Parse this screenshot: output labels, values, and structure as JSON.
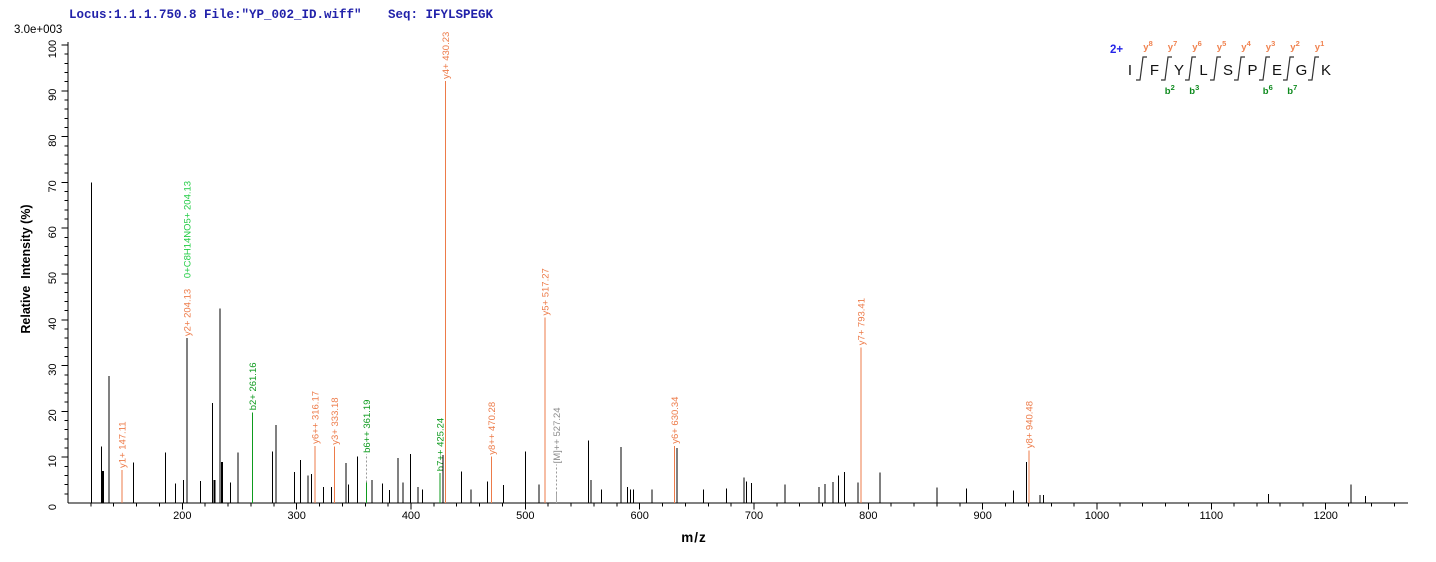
{
  "header": {
    "locus_file": "Locus:1.1.1.750.8 File:\"YP_002_ID.wiff\"",
    "seq_label": "Seq: ",
    "seq_value": "IFYLSPEGK"
  },
  "colors": {
    "header_blue": "#2222AA",
    "charge_blue": "#2525E8",
    "y_ion_orange": "#ED7B49",
    "b_ion_green": "#0E9B1E",
    "formula_green": "#22CC44",
    "precursor_gray": "#8C8C8C",
    "precursor_line_gray": "#A8A8A8",
    "peak_black": "#000000"
  },
  "peptide_diagram": {
    "charge": "2+",
    "residues": [
      "I",
      "F",
      "Y",
      "L",
      "S",
      "P",
      "E",
      "G",
      "K"
    ],
    "boundaries": [
      {
        "y_base": "y",
        "y_sup": "8",
        "b_base": "",
        "b_sup": ""
      },
      {
        "y_base": "y",
        "y_sup": "7",
        "b_base": "b",
        "b_sup": "2"
      },
      {
        "y_base": "y",
        "y_sup": "6",
        "b_base": "b",
        "b_sup": "3"
      },
      {
        "y_base": "y",
        "y_sup": "5",
        "b_base": "",
        "b_sup": ""
      },
      {
        "y_base": "y",
        "y_sup": "4",
        "b_base": "",
        "b_sup": ""
      },
      {
        "y_base": "y",
        "y_sup": "3",
        "b_base": "b",
        "b_sup": "6"
      },
      {
        "y_base": "y",
        "y_sup": "2",
        "b_base": "b",
        "b_sup": "7"
      },
      {
        "y_base": "y",
        "y_sup": "1",
        "b_base": "",
        "b_sup": ""
      }
    ]
  },
  "chart_data": {
    "type": "bar",
    "subtype": "ms2-fragment-spectrum",
    "xlabel": "m/z",
    "ylabel": "Relative  Intensity (%)",
    "intensity_scale": "3.0e+003",
    "xlim": [
      100,
      1272
    ],
    "ylim": [
      0,
      100
    ],
    "x_major_ticks": [
      200,
      300,
      400,
      500,
      600,
      700,
      800,
      900,
      1000,
      1100,
      1200
    ],
    "x_minor_step": 20,
    "y_major_step": 10,
    "y_minor_step": 2,
    "grid": false,
    "legend": "none",
    "peaks": [
      {
        "mz": 120.5,
        "i": 70
      },
      {
        "mz": 129.3,
        "i": 12.3
      },
      {
        "mz": 130.5,
        "i": 7,
        "w": 2
      },
      {
        "mz": 136.0,
        "i": 27.7
      },
      {
        "mz": 147.11,
        "i": 7.2,
        "t": "y",
        "label": "y1+ 147.11"
      },
      {
        "mz": 157.3,
        "i": 8.8
      },
      {
        "mz": 185.4,
        "i": 11
      },
      {
        "mz": 194,
        "i": 4.3
      },
      {
        "mz": 201,
        "i": 5
      },
      {
        "mz": 204.13,
        "i": 36,
        "t": "k",
        "label": "y2+ 204.13",
        "label2": "0+C8H14NO5+ 204.13"
      },
      {
        "mz": 216,
        "i": 4.8
      },
      {
        "mz": 226.5,
        "i": 21.8
      },
      {
        "mz": 228,
        "i": 5,
        "w": 2
      },
      {
        "mz": 233,
        "i": 42.5
      },
      {
        "mz": 234.5,
        "i": 9,
        "w": 2
      },
      {
        "mz": 242,
        "i": 4.5
      },
      {
        "mz": 248.5,
        "i": 11
      },
      {
        "mz": 261.16,
        "i": 19.8,
        "t": "b",
        "label": "b2+ 261.16"
      },
      {
        "mz": 279,
        "i": 11.2
      },
      {
        "mz": 282,
        "i": 17
      },
      {
        "mz": 298,
        "i": 6.8
      },
      {
        "mz": 303.5,
        "i": 9.4
      },
      {
        "mz": 310,
        "i": 6
      },
      {
        "mz": 313,
        "i": 6.3
      },
      {
        "mz": 316.17,
        "i": 12.5,
        "t": "y",
        "label": "y6++ 316.17"
      },
      {
        "mz": 323.5,
        "i": 3.5
      },
      {
        "mz": 330.5,
        "i": 3.5
      },
      {
        "mz": 333.18,
        "i": 12.3,
        "t": "y",
        "label": "y3+ 333.18"
      },
      {
        "mz": 343,
        "i": 8.7
      },
      {
        "mz": 345.5,
        "i": 4
      },
      {
        "mz": 353,
        "i": 10.1
      },
      {
        "mz": 361.19,
        "i": 4.5,
        "t": "b",
        "label": "b6++ 361.19",
        "label_at": 10.5
      },
      {
        "mz": 366,
        "i": 5
      },
      {
        "mz": 375,
        "i": 4.3
      },
      {
        "mz": 381,
        "i": 2.8
      },
      {
        "mz": 388.5,
        "i": 9.8
      },
      {
        "mz": 393,
        "i": 4.5
      },
      {
        "mz": 399.5,
        "i": 10.7
      },
      {
        "mz": 406,
        "i": 3.5
      },
      {
        "mz": 410,
        "i": 3
      },
      {
        "mz": 425.24,
        "i": 6.5,
        "t": "b",
        "label": "b7++ 425.24"
      },
      {
        "mz": 428,
        "i": 10.5
      },
      {
        "mz": 430.23,
        "i": 100,
        "t": "y",
        "label": "y4+ 430.23"
      },
      {
        "mz": 444,
        "i": 6.9
      },
      {
        "mz": 452.5,
        "i": 3
      },
      {
        "mz": 467,
        "i": 4.7
      },
      {
        "mz": 470.28,
        "i": 10.1,
        "t": "y",
        "label": "y8++ 470.28"
      },
      {
        "mz": 481,
        "i": 3.9
      },
      {
        "mz": 500.3,
        "i": 11.2
      },
      {
        "mz": 512,
        "i": 4
      },
      {
        "mz": 517.27,
        "i": 40.5,
        "t": "y",
        "label": "y5+ 517.27"
      },
      {
        "mz": 527.24,
        "i": 2.1,
        "t": "M",
        "label": "[M]++ 527.24",
        "label_at": 8.2
      },
      {
        "mz": 555.2,
        "i": 13.6
      },
      {
        "mz": 557.5,
        "i": 5
      },
      {
        "mz": 566.5,
        "i": 3
      },
      {
        "mz": 583.5,
        "i": 12.2
      },
      {
        "mz": 589.5,
        "i": 3.5
      },
      {
        "mz": 592,
        "i": 3
      },
      {
        "mz": 594.5,
        "i": 3
      },
      {
        "mz": 611,
        "i": 3
      },
      {
        "mz": 630.34,
        "i": 12.5,
        "t": "y",
        "label": "y6+ 630.34"
      },
      {
        "mz": 632.5,
        "i": 12
      },
      {
        "mz": 656,
        "i": 2.9
      },
      {
        "mz": 676,
        "i": 3.2
      },
      {
        "mz": 691.3,
        "i": 5.6
      },
      {
        "mz": 693.5,
        "i": 4.7
      },
      {
        "mz": 698,
        "i": 4.4
      },
      {
        "mz": 727,
        "i": 4
      },
      {
        "mz": 757,
        "i": 3.5
      },
      {
        "mz": 762,
        "i": 4.2
      },
      {
        "mz": 769,
        "i": 4.6
      },
      {
        "mz": 774,
        "i": 6
      },
      {
        "mz": 779,
        "i": 6.8
      },
      {
        "mz": 791,
        "i": 4.5
      },
      {
        "mz": 793.41,
        "i": 34,
        "t": "y",
        "label": "y7+ 793.41"
      },
      {
        "mz": 810,
        "i": 6.7
      },
      {
        "mz": 860,
        "i": 3.4
      },
      {
        "mz": 886,
        "i": 3.2
      },
      {
        "mz": 927,
        "i": 2.7
      },
      {
        "mz": 938.5,
        "i": 9
      },
      {
        "mz": 940.48,
        "i": 11.5,
        "t": "y",
        "label": "y8+ 940.48"
      },
      {
        "mz": 950,
        "i": 1.8
      },
      {
        "mz": 953,
        "i": 1.8
      },
      {
        "mz": 1150,
        "i": 2
      },
      {
        "mz": 1222,
        "i": 4
      },
      {
        "mz": 1235,
        "i": 1.5
      }
    ]
  }
}
